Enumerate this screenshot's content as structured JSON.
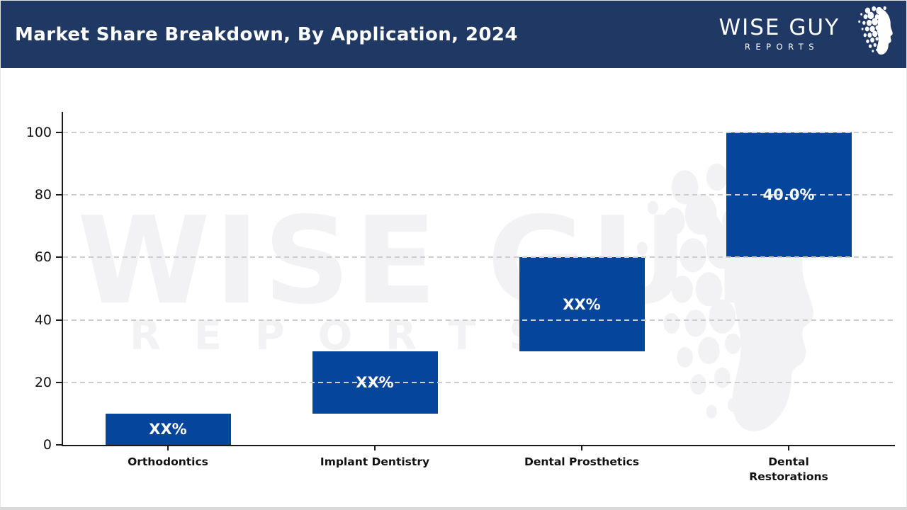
{
  "header": {
    "title": "Market Share Breakdown, By Application, 2024",
    "logo": {
      "line1": "WISE GUY",
      "line2": "REPORTS"
    }
  },
  "watermark": {
    "line1": "WISE GUY",
    "line2": "REPORTS"
  },
  "chart_data": {
    "type": "bar",
    "subtype": "floating-waterfall",
    "title": "Market Share Breakdown, By Application, 2024",
    "categories": [
      "Orthodontics",
      "Implant Dentistry",
      "Dental Prosthetics",
      "Dental\nRestorations"
    ],
    "bars": [
      {
        "category": "Orthodontics",
        "start": 0,
        "end": 10,
        "label": "XX%"
      },
      {
        "category": "Implant Dentistry",
        "start": 10,
        "end": 30,
        "label": "XX%"
      },
      {
        "category": "Dental Prosthetics",
        "start": 30,
        "end": 60,
        "label": "XX%"
      },
      {
        "category": "Dental Restorations",
        "start": 60,
        "end": 100,
        "label": "40.0%"
      }
    ],
    "xlabel": "",
    "ylabel": "",
    "yticks": [
      0,
      20,
      40,
      60,
      80,
      100
    ],
    "ylim": [
      0,
      106
    ],
    "grid": "dashed-horizontal",
    "legend": "none",
    "colors": {
      "bar": "#05459B",
      "header_bg": "#1F3864",
      "grid_line": "#cdcdcd",
      "axis": "#1a1a1a",
      "bar_label": "#ffffff",
      "title_text": "#ffffff",
      "watermark": "#f2f2f4"
    }
  }
}
